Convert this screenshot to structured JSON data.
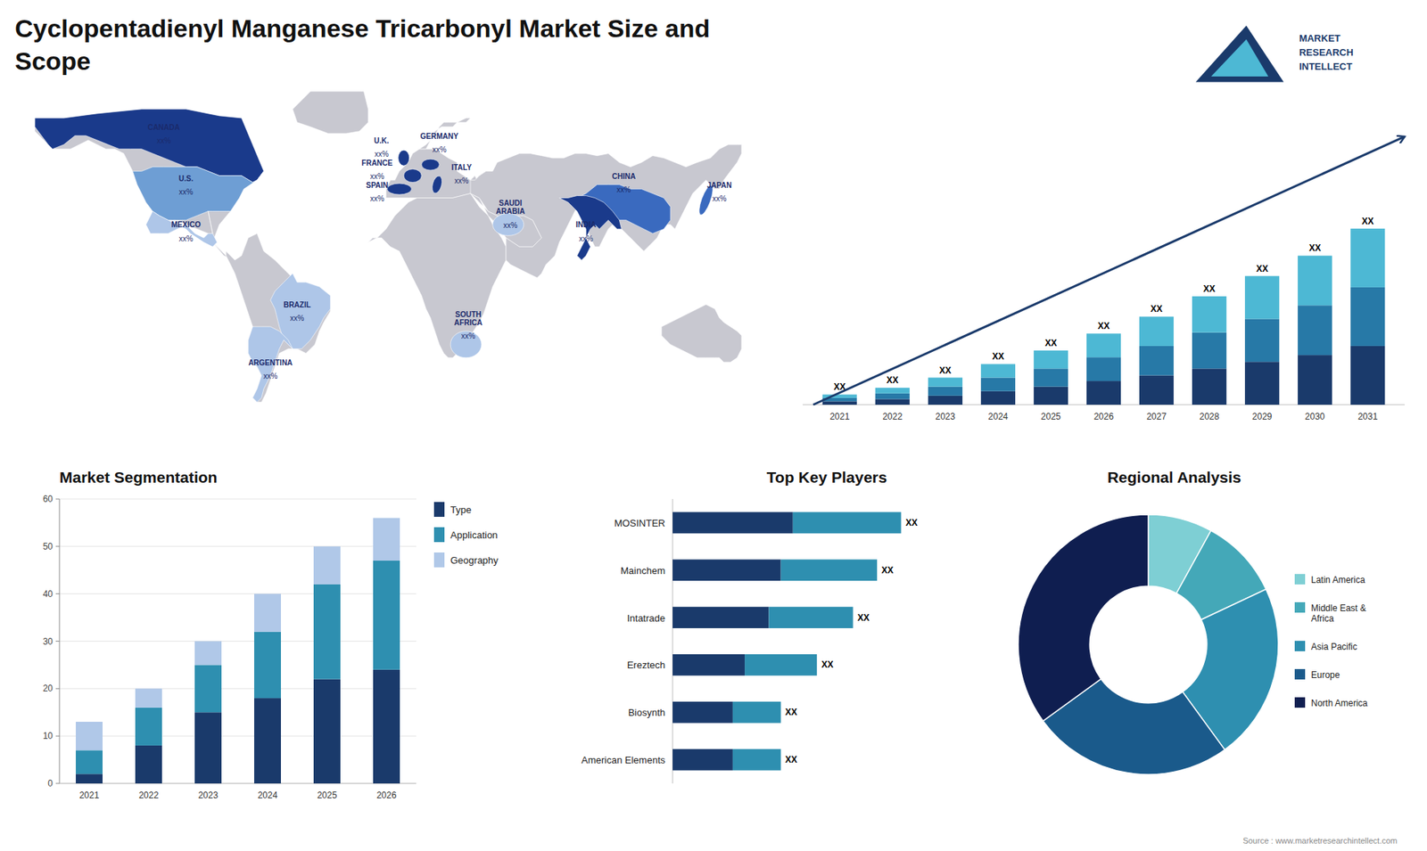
{
  "chart_data": [
    {
      "type": "map",
      "title": "Cyclopentadienyl Manganese Tricarbonyl Market Size and\nScope",
      "categories": [
        "CANADA",
        "U.S.",
        "MEXICO",
        "BRAZIL",
        "ARGENTINA",
        "U.K.",
        "FRANCE",
        "SPAIN",
        "GERMANY",
        "ITALY",
        "SAUDI\nARABIA",
        "SOUTH\nAFRICA",
        "CHINA",
        "INDIA",
        "JAPAN"
      ],
      "value_labels": [
        "xx%",
        "xx%",
        "xx%",
        "xx%",
        "xx%",
        "xx%",
        "xx%",
        "xx%",
        "xx%",
        "xx%",
        "xx%",
        "xx%",
        "xx%",
        "xx%",
        "xx%"
      ],
      "colors": [
        "#1a3a8b",
        "#6e9ed4",
        "#aec6e8",
        "#aec6e8",
        "#aec6e8",
        "#1a3a8b",
        "#1a3a8b",
        "#1a3a8b",
        "#1a3a8b",
        "#1a3a8b",
        "#aec6e8",
        "#aec6e8",
        "#3a6abf",
        "#1a3a8b",
        "#3a6abf"
      ],
      "annotations": [
        "Source : www.marketresearchintellect.com",
        "MARKET\nRESEARCH\nINTELLECT"
      ]
    },
    {
      "type": "bar",
      "stacked": true,
      "categories": [
        "2021",
        "2022",
        "2023",
        "2024",
        "2025",
        "2026",
        "2027",
        "2028",
        "2029",
        "2030",
        "2031"
      ],
      "series": [
        {
          "color": "#1a3a6b",
          "values": [
            1.5,
            2.5,
            4,
            6,
            8,
            10.5,
            13,
            16,
            19,
            22,
            26
          ]
        },
        {
          "color": "#2779a7",
          "values": [
            1.5,
            2.5,
            4,
            6,
            8,
            10.5,
            13,
            16,
            19,
            22,
            26
          ]
        },
        {
          "color": "#4db8d4",
          "values": [
            1.5,
            2.5,
            4,
            6,
            8,
            10.5,
            13,
            16,
            19,
            22,
            26
          ]
        }
      ],
      "annotations": [
        "XX",
        "XX",
        "XX",
        "XX",
        "XX",
        "XX",
        "XX",
        "XX",
        "XX",
        "XX",
        "XX"
      ],
      "ylim": [
        0,
        136.5
      ],
      "tick_labels": "x",
      "grid": false
    },
    {
      "type": "bar",
      "stacked": true,
      "title": "Market Segmentation",
      "categories": [
        "2021",
        "2022",
        "2023",
        "2024",
        "2025",
        "2026"
      ],
      "series": [
        {
          "name": "Type",
          "color": "#1a3a6b",
          "values": [
            2,
            8,
            15,
            18,
            22,
            24
          ]
        },
        {
          "name": "Application",
          "color": "#2e8fb0",
          "values": [
            5,
            8,
            10,
            14,
            20,
            23
          ]
        },
        {
          "name": "Geography",
          "color": "#b0c8e8",
          "values": [
            6,
            4,
            5,
            8,
            8,
            9
          ]
        }
      ],
      "ylim": [
        0,
        60
      ],
      "yticks": [
        0,
        10,
        20,
        30,
        40,
        50,
        60
      ],
      "grid": true,
      "legend": "right"
    },
    {
      "type": "bar",
      "stacked": true,
      "orientation": "horizontal",
      "title": "Top Key Players",
      "categories": [
        "MOSINTER",
        "Mainchem",
        "Intatrade",
        "Ereztech",
        "Biosynth",
        "American Elements"
      ],
      "series": [
        {
          "color": "#1a3a6b",
          "values": [
            5,
            4.5,
            4,
            3,
            2.5,
            2.5
          ]
        },
        {
          "color": "#2e8fb0",
          "values": [
            4.5,
            4,
            3.5,
            3,
            2,
            2
          ]
        }
      ],
      "annotations": [
        "XX",
        "XX",
        "XX",
        "XX",
        "XX",
        "XX"
      ],
      "xlim": [
        0,
        12.825
      ],
      "tick_labels": "y",
      "grid": false
    },
    {
      "type": "donut",
      "title": "Regional Analysis",
      "categories": [
        "Latin America",
        "Middle East &\nAfrica",
        "Asia Pacific",
        "Europe",
        "North America"
      ],
      "values": [
        8,
        10,
        22,
        25,
        35
      ],
      "colors": [
        "#7ecfd4",
        "#44a8b8",
        "#2e8fb0",
        "#1a5a8b",
        "#0f1e50"
      ],
      "legend": "right"
    }
  ]
}
